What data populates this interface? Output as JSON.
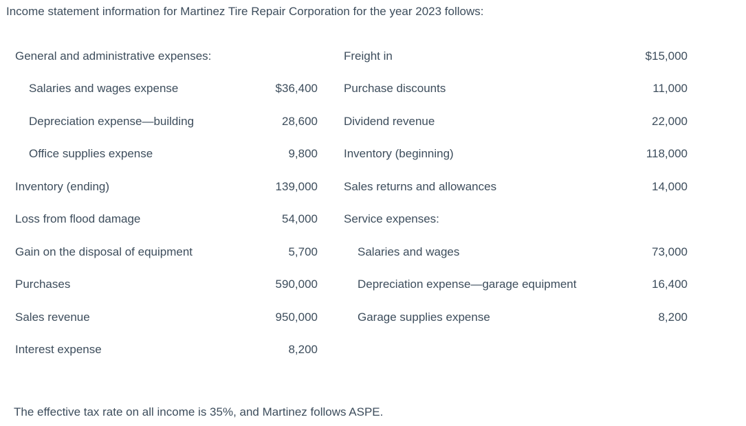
{
  "title": "Income statement information for Martinez Tire Repair Corporation for the year 2023 follows:",
  "footer": "The effective tax rate on all income is 35%, and Martinez follows ASPE.",
  "colors": {
    "text": "#3d4d5c",
    "background": "#ffffff"
  },
  "left_table": {
    "rows": [
      {
        "label": "General and administrative expenses:",
        "amount": "",
        "indent": 0
      },
      {
        "label": "Salaries and wages expense",
        "amount": "$36,400",
        "indent": 1
      },
      {
        "label": "Depreciation expense—building",
        "amount": "28,600",
        "indent": 1
      },
      {
        "label": "Office supplies expense",
        "amount": "9,800",
        "indent": 1
      },
      {
        "label": "Inventory (ending)",
        "amount": "139,000",
        "indent": 0
      },
      {
        "label": "Loss from flood damage",
        "amount": "54,000",
        "indent": 0
      },
      {
        "label": "Gain on the disposal of equipment",
        "amount": "5,700",
        "indent": 0
      },
      {
        "label": "Purchases",
        "amount": "590,000",
        "indent": 0
      },
      {
        "label": "Sales revenue",
        "amount": "950,000",
        "indent": 0
      },
      {
        "label": "Interest expense",
        "amount": "8,200",
        "indent": 0
      }
    ]
  },
  "right_table": {
    "rows": [
      {
        "label": "Freight in",
        "amount": "$15,000",
        "indent": 0
      },
      {
        "label": "Purchase discounts",
        "amount": "11,000",
        "indent": 0
      },
      {
        "label": "Dividend revenue",
        "amount": "22,000",
        "indent": 0
      },
      {
        "label": "Inventory (beginning)",
        "amount": "118,000",
        "indent": 0
      },
      {
        "label": "Sales returns and allowances",
        "amount": "14,000",
        "indent": 0
      },
      {
        "label": "Service expenses:",
        "amount": "",
        "indent": 0
      },
      {
        "label": "Salaries and wages",
        "amount": "73,000",
        "indent": 1
      },
      {
        "label": "Depreciation expense—garage equipment",
        "amount": "16,400",
        "indent": 1
      },
      {
        "label": "Garage supplies expense",
        "amount": "8,200",
        "indent": 1
      }
    ]
  }
}
